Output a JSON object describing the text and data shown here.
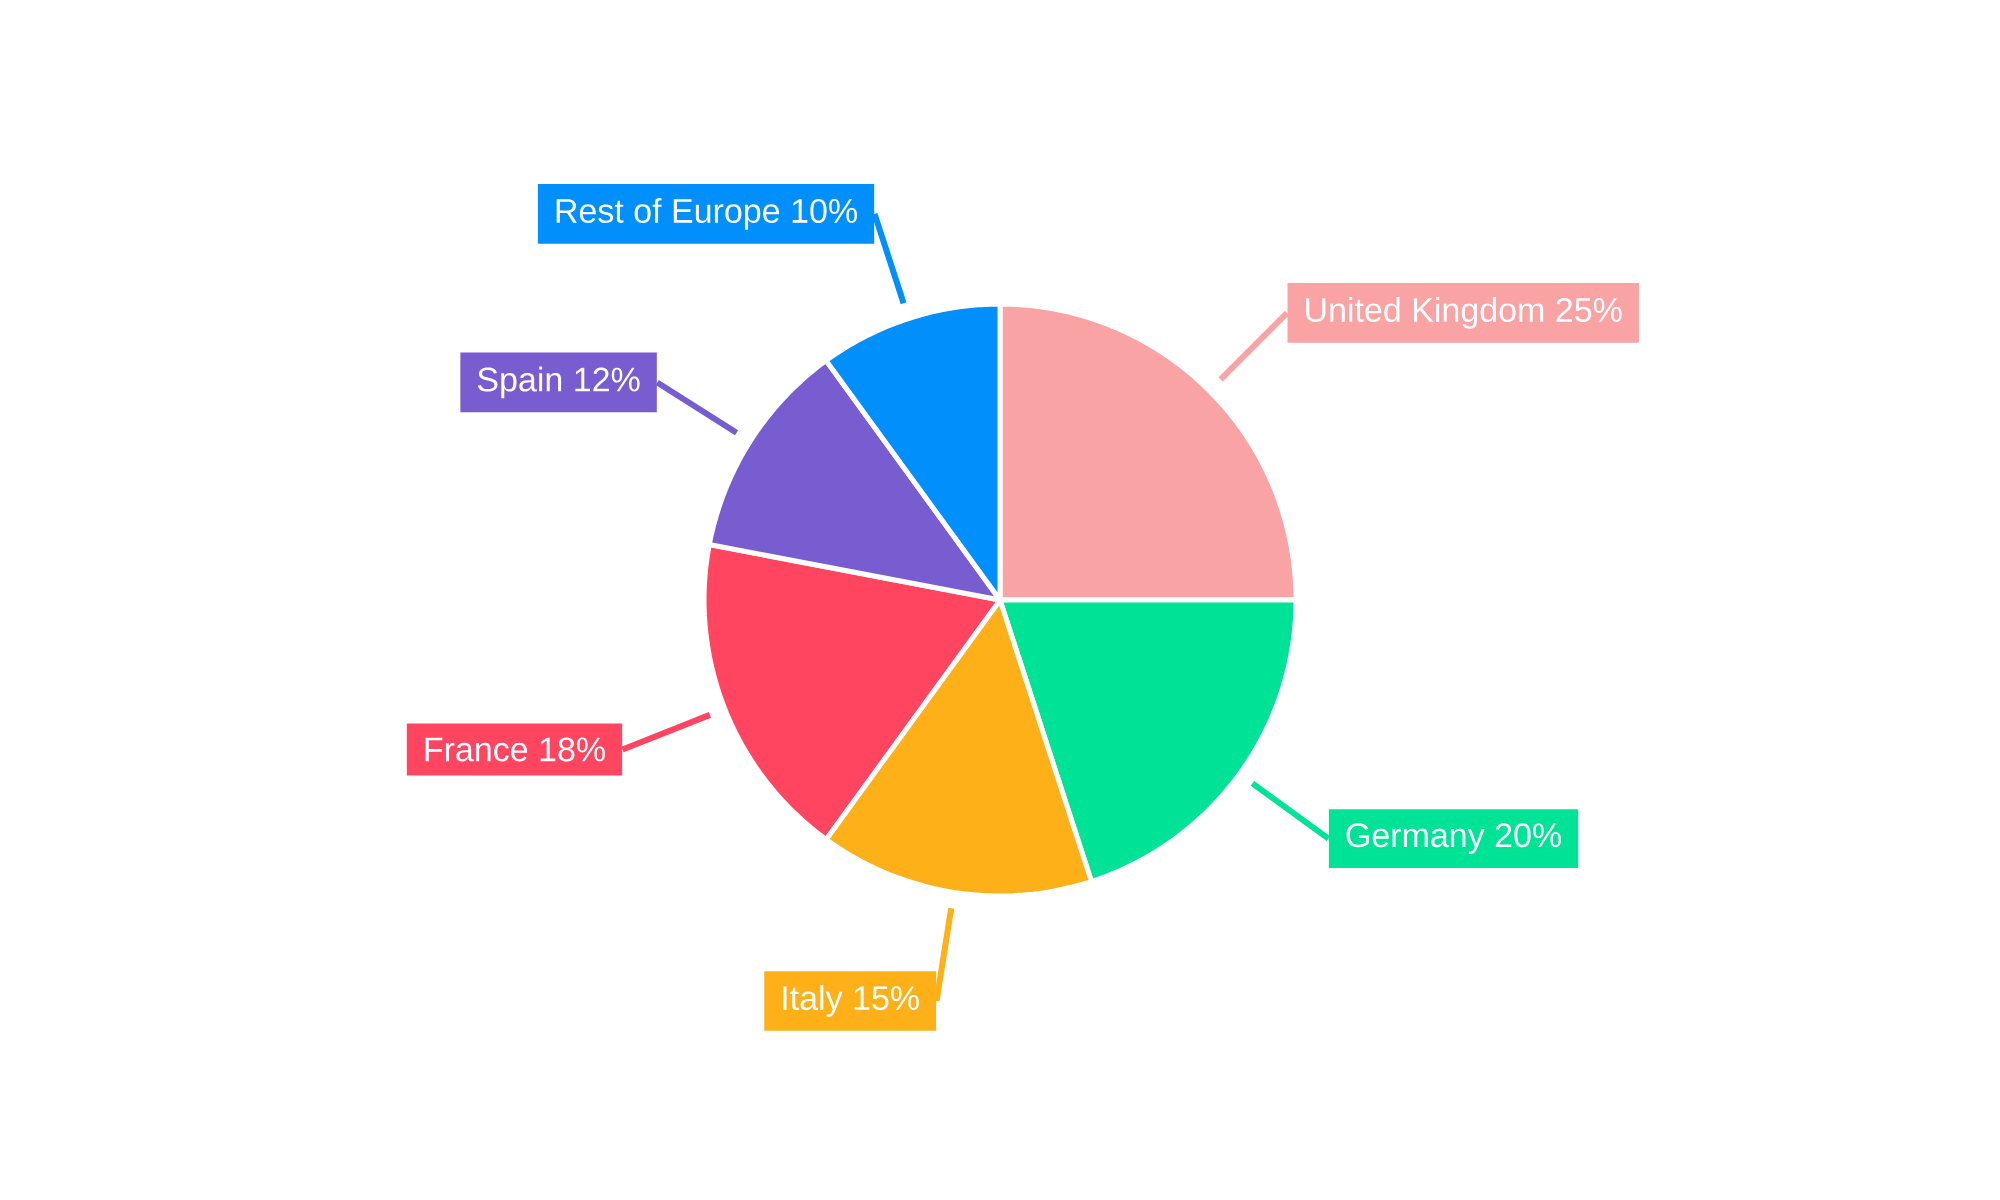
{
  "chart_data": {
    "type": "pie",
    "categories": [
      "United Kingdom",
      "Germany",
      "Italy",
      "France",
      "Spain",
      "Rest of Europe"
    ],
    "values": [
      25,
      20,
      15,
      18,
      12,
      10
    ],
    "value_labels": [
      "25%",
      "20%",
      "15%",
      "18%",
      "12%",
      "10%"
    ],
    "colors": [
      "#f9a3a4",
      "#00e396",
      "#feb019",
      "#ff4560",
      "#775dd0",
      "#008ffb"
    ]
  }
}
